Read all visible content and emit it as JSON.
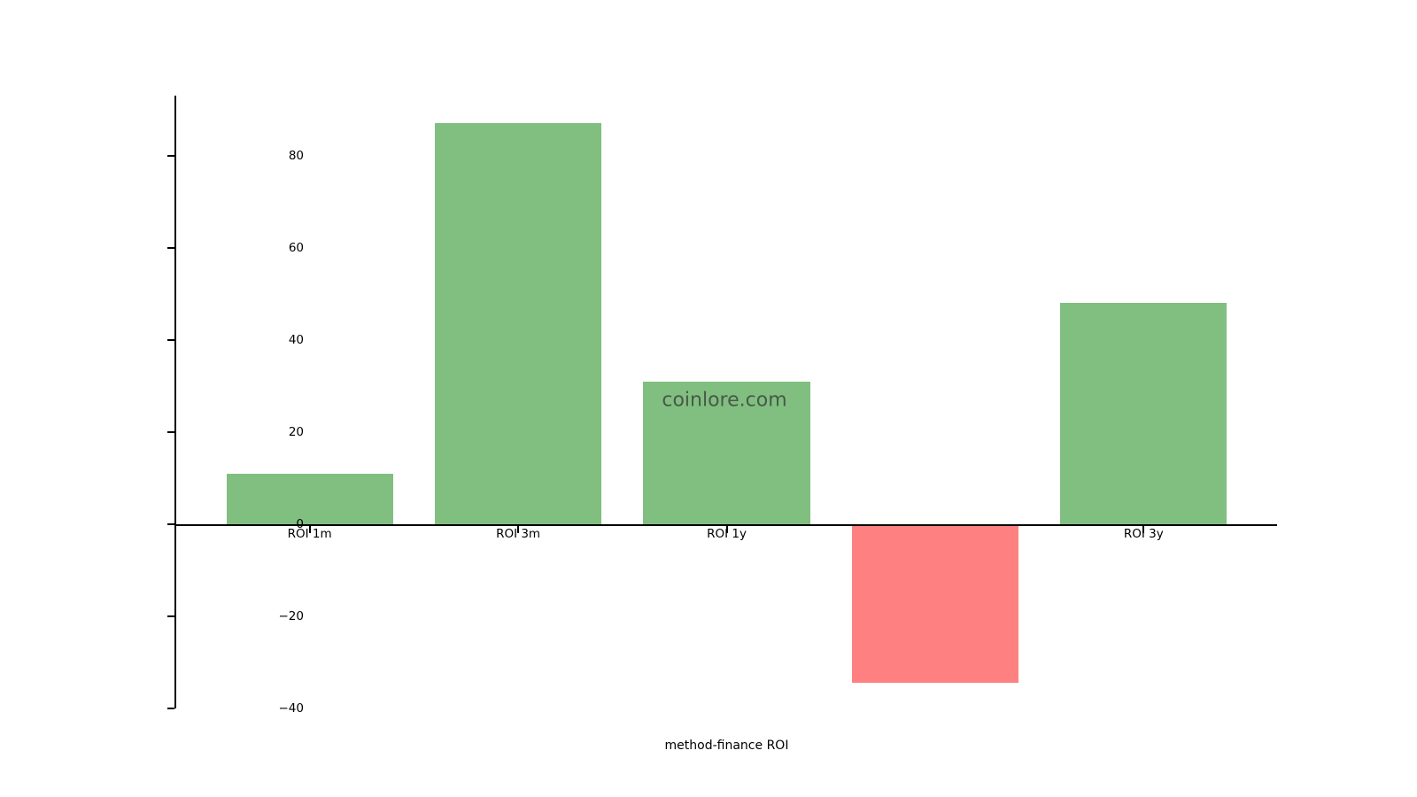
{
  "figure": {
    "watermark": "coinlore.com",
    "background_color": "#ffffff",
    "axis_color": "#000000"
  },
  "chart_data": {
    "type": "bar",
    "title": "method-finance ROI",
    "xlabel": "method-finance ROI",
    "ylabel": "",
    "categories": [
      "ROI 1m",
      "ROI 3m",
      "ROI 1y",
      "",
      "ROI 3y"
    ],
    "values": [
      11,
      87,
      31,
      -34,
      48
    ],
    "bar_colors": [
      "#80bf80",
      "#80bf80",
      "#80bf80",
      "#ff8080",
      "#80bf80"
    ],
    "positive_color": "#80bf80",
    "negative_color": "#ff8080",
    "ytick_values": [
      -40,
      -20,
      0,
      20,
      40,
      60,
      80
    ],
    "ytick_labels": [
      "−40",
      "−20",
      "0",
      "20",
      "40",
      "60",
      "80"
    ],
    "ylim": [
      -40.05,
      93.05
    ],
    "xlim": [
      -0.64,
      4.64
    ],
    "bar_width": 0.8,
    "grid": false,
    "legend": null
  }
}
